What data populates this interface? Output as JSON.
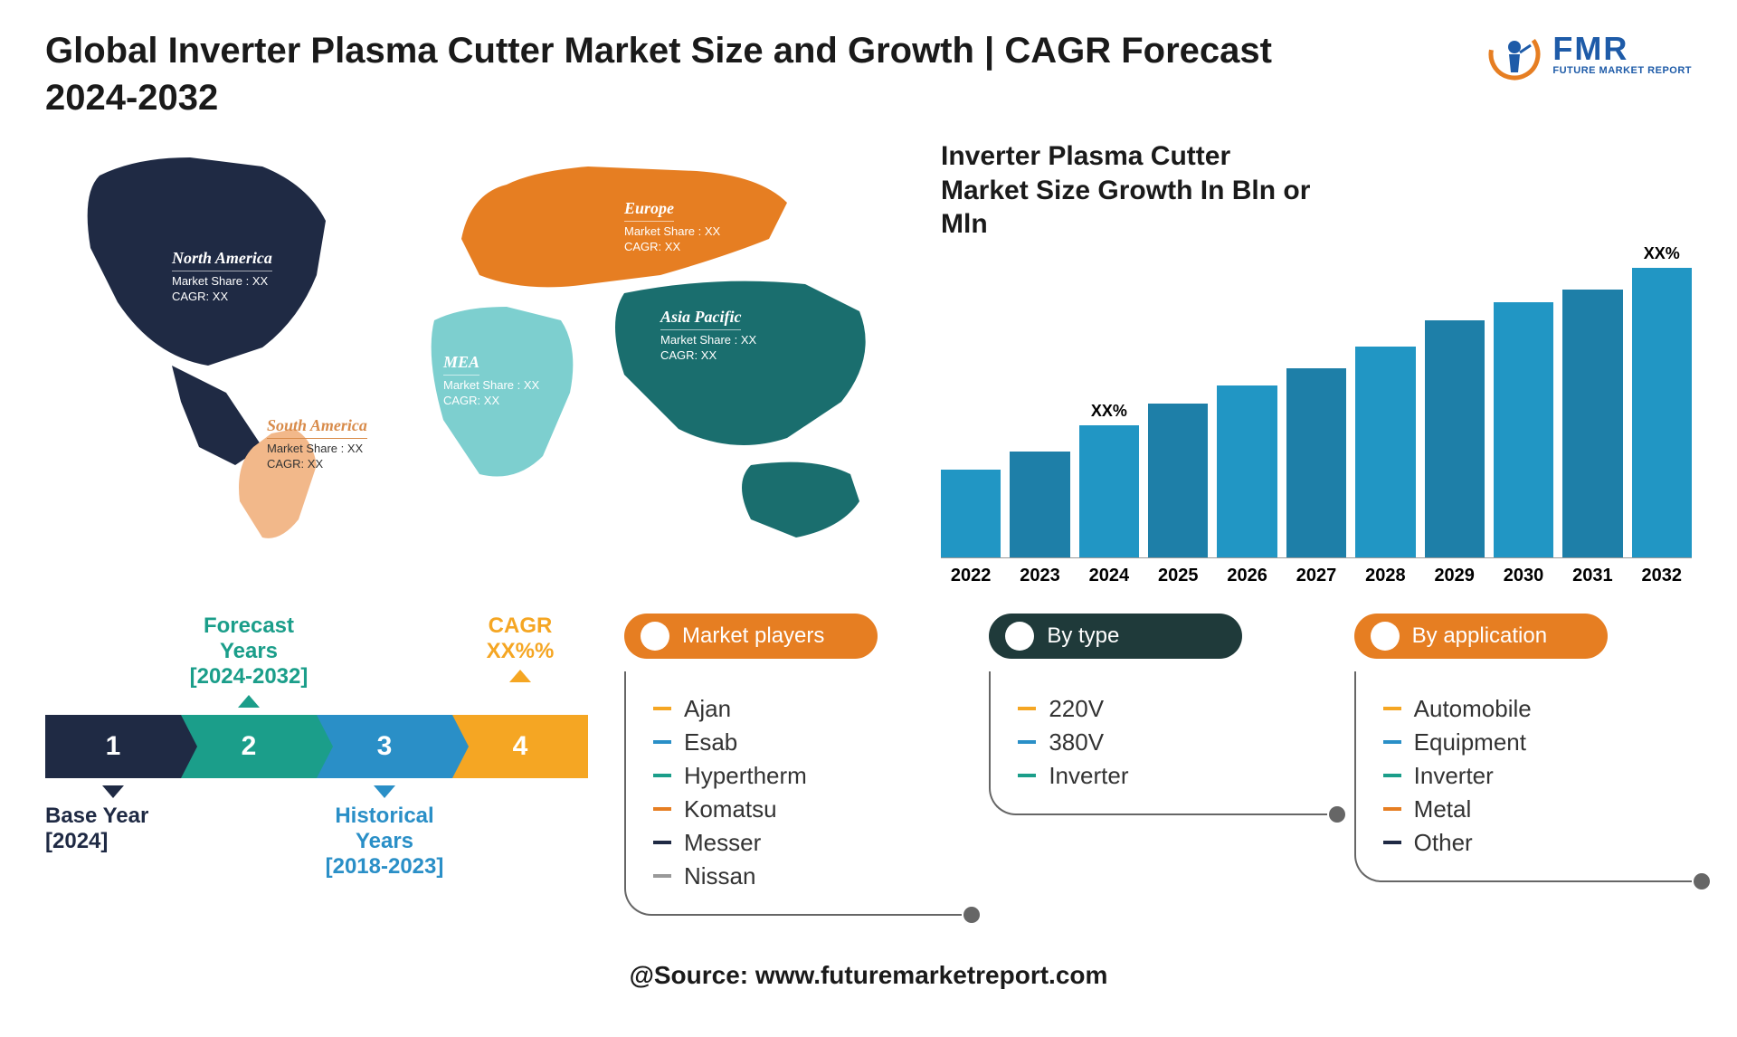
{
  "title": "Global Inverter Plasma Cutter Market Size and Growth | CAGR Forecast 2024-2032",
  "logo": {
    "main": "FMR",
    "sub": "FUTURE MARKET REPORT"
  },
  "map": {
    "regions": [
      {
        "name": "North America",
        "share": "Market Share : XX",
        "cagr": "CAGR: XX",
        "color": "#1f2a44"
      },
      {
        "name": "South America",
        "share": "Market Share : XX",
        "cagr": "CAGR: XX",
        "color": "#f2b88a"
      },
      {
        "name": "Europe",
        "share": "Market Share : XX",
        "cagr": "CAGR: XX",
        "color": "#e67e22"
      },
      {
        "name": "MEA",
        "share": "Market Share : XX",
        "cagr": "CAGR: XX",
        "color": "#7dcfcf"
      },
      {
        "name": "Asia Pacific",
        "share": "Market Share : XX",
        "cagr": "CAGR: XX",
        "color": "#1a6e6e"
      }
    ]
  },
  "chart": {
    "title": "Inverter Plasma Cutter Market Size Growth In Bln or Mln",
    "years": [
      "2022",
      "2023",
      "2024",
      "2025",
      "2026",
      "2027",
      "2028",
      "2029",
      "2030",
      "2031",
      "2032"
    ],
    "values": [
      100,
      120,
      150,
      175,
      195,
      215,
      240,
      270,
      290,
      305,
      330
    ],
    "annotations": [
      {
        "index": 2,
        "text": "XX%"
      },
      {
        "index": 10,
        "text": "XX%"
      }
    ],
    "bar_color": "#2196c4",
    "bar_color_alt": "#1e7fa8"
  },
  "timeline": {
    "forecast_label": "Forecast Years",
    "forecast_range": "[2024-2032]",
    "cagr_label": "CAGR",
    "cagr_value": "XX%%",
    "base_label": "Base Year",
    "base_value": "[2024]",
    "hist_label": "Historical Years",
    "hist_value": "[2018-2023]",
    "segments": [
      "1",
      "2",
      "3",
      "4"
    ],
    "colors": {
      "1": "#1f2a44",
      "2": "#1b9e8a",
      "3": "#2a8fc7",
      "4": "#f5a623"
    }
  },
  "categories": [
    {
      "label": "Market players",
      "pill_color": "#e67e22",
      "items": [
        "Ajan",
        "Esab",
        "Hypertherm",
        "Komatsu",
        "Messer",
        "Nissan"
      ],
      "tick_colors": [
        "#f5a623",
        "#2a8fc7",
        "#1b9e8a",
        "#e67e22",
        "#1f2a44",
        "#999999"
      ]
    },
    {
      "label": "By type",
      "pill_color": "#1f3a3a",
      "items": [
        "220V",
        "380V",
        "Inverter"
      ],
      "tick_colors": [
        "#f5a623",
        "#2a8fc7",
        "#1b9e8a"
      ]
    },
    {
      "label": "By application",
      "pill_color": "#e67e22",
      "items": [
        "Automobile",
        "Equipment",
        "Inverter",
        "Metal",
        "Other"
      ],
      "tick_colors": [
        "#f5a623",
        "#2a8fc7",
        "#1b9e8a",
        "#e67e22",
        "#1f2a44"
      ]
    }
  ],
  "source": "@Source: www.futuremarketreport.com"
}
